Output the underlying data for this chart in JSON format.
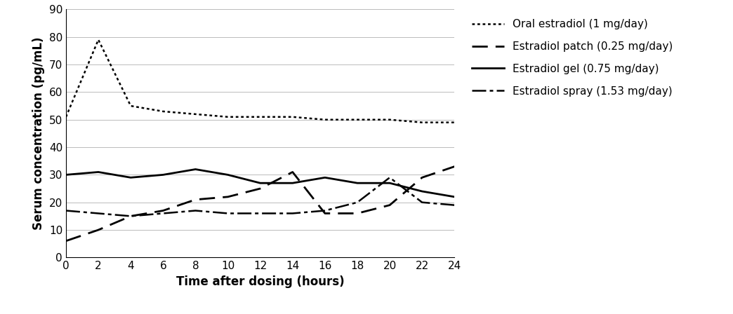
{
  "time": [
    0,
    2,
    4,
    6,
    8,
    10,
    12,
    14,
    16,
    18,
    20,
    22,
    24
  ],
  "oral_estradiol": [
    51,
    79,
    55,
    53,
    52,
    51,
    51,
    51,
    50,
    50,
    50,
    49,
    49
  ],
  "estradiol_patch": [
    6,
    10,
    15,
    17,
    21,
    22,
    25,
    31,
    16,
    16,
    19,
    29,
    33
  ],
  "estradiol_gel": [
    30,
    31,
    29,
    30,
    32,
    30,
    27,
    27,
    29,
    27,
    27,
    24,
    22
  ],
  "estradiol_spray": [
    17,
    16,
    15,
    16,
    17,
    16,
    16,
    16,
    17,
    20,
    29,
    20,
    19
  ],
  "legend_labels": [
    "Oral estradiol (1 mg/day)",
    "Estradiol patch (0.25 mg/day)",
    "Estradiol gel (0.75 mg/day)",
    "Estradiol spray (1.53 mg/day)"
  ],
  "xlabel": "Time after dosing (hours)",
  "ylabel": "Serum concentration (pg/mL)",
  "ylim": [
    0,
    90
  ],
  "xlim": [
    0,
    24
  ],
  "yticks": [
    0,
    10,
    20,
    30,
    40,
    50,
    60,
    70,
    80,
    90
  ],
  "xticks": [
    0,
    2,
    4,
    6,
    8,
    10,
    12,
    14,
    16,
    18,
    20,
    22,
    24
  ],
  "line_color": "#000000",
  "background_color": "#ffffff",
  "grid_color": "#bbbbbb",
  "axis_fontsize": 12,
  "tick_fontsize": 11,
  "legend_fontsize": 11
}
